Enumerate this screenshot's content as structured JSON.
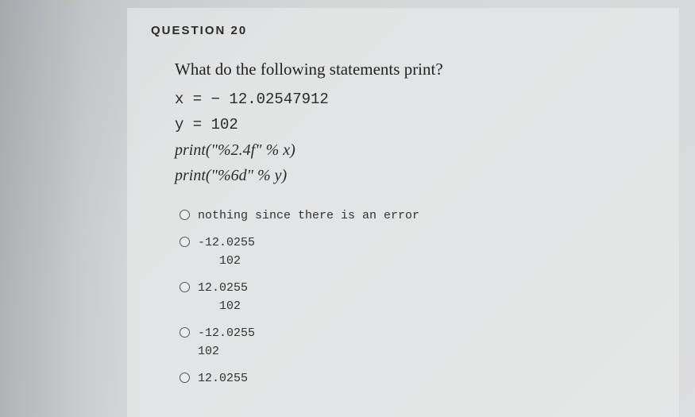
{
  "question": {
    "header": "QUESTION 20",
    "prompt": "What do the following statements print?",
    "code_lines": [
      "x = − 12.02547912",
      "y = 102",
      "print(\"%2.4f\" % x)",
      "print(\"%6d\" % y)"
    ],
    "options": [
      {
        "text": "nothing since there is an error"
      },
      {
        "text": "-12.0255\n   102"
      },
      {
        "text": "12.0255\n   102"
      },
      {
        "text": "-12.0255\n102"
      },
      {
        "text": "12.0255"
      }
    ]
  }
}
